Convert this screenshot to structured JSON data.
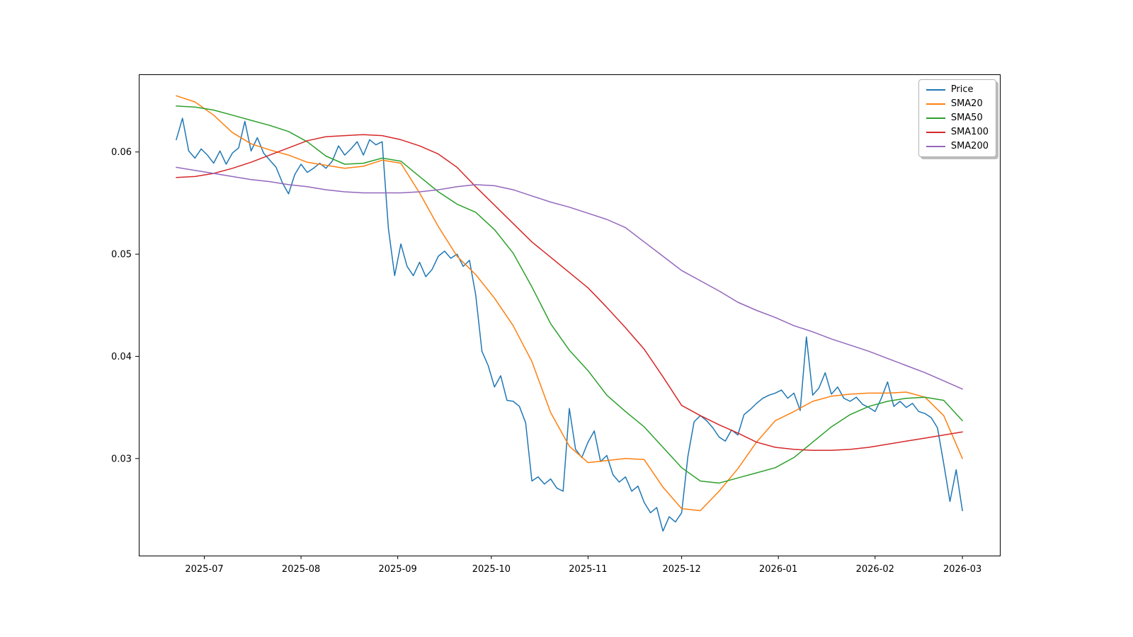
{
  "figure": {
    "background_color": "#ffffff",
    "axes_edge_color": "#000000",
    "tick_color": "#000000"
  },
  "legend": {
    "position": "upper right",
    "entries": [
      "Price",
      "SMA20",
      "SMA50",
      "SMA100",
      "SMA200"
    ]
  },
  "chart_data": {
    "type": "line",
    "title": "",
    "xlabel": "",
    "ylabel": "",
    "x_unit": "days since 2025-06-22",
    "xlim_days": [
      -12,
      264
    ],
    "ylim": [
      0.0205,
      0.0676
    ],
    "grid": false,
    "y_ticks": [
      0.03,
      0.04,
      0.05,
      0.06
    ],
    "x_ticks": [
      {
        "day": 9,
        "label": "2025-07"
      },
      {
        "day": 40,
        "label": "2025-08"
      },
      {
        "day": 71,
        "label": "2025-09"
      },
      {
        "day": 101,
        "label": "2025-10"
      },
      {
        "day": 132,
        "label": "2025-11"
      },
      {
        "day": 162,
        "label": "2025-12"
      },
      {
        "day": 193,
        "label": "2026-01"
      },
      {
        "day": 224,
        "label": "2026-02"
      },
      {
        "day": 252,
        "label": "2026-03"
      }
    ],
    "series": [
      {
        "name": "Price",
        "color": "#1f77b4",
        "x_start": 0,
        "x_step": 2,
        "values": [
          0.0612,
          0.0633,
          0.0601,
          0.0594,
          0.0603,
          0.0597,
          0.0589,
          0.0601,
          0.0588,
          0.0599,
          0.0604,
          0.063,
          0.0601,
          0.0614,
          0.0599,
          0.0592,
          0.0585,
          0.057,
          0.0559,
          0.0578,
          0.0588,
          0.058,
          0.0584,
          0.0589,
          0.0584,
          0.0591,
          0.0606,
          0.0597,
          0.0603,
          0.061,
          0.0597,
          0.0612,
          0.0607,
          0.061,
          0.0525,
          0.0479,
          0.051,
          0.0488,
          0.0479,
          0.0492,
          0.0478,
          0.0485,
          0.0498,
          0.0503,
          0.0496,
          0.05,
          0.0488,
          0.0494,
          0.046,
          0.0405,
          0.0391,
          0.037,
          0.0381,
          0.0357,
          0.0356,
          0.0351,
          0.0335,
          0.0278,
          0.0282,
          0.0275,
          0.028,
          0.0271,
          0.0268,
          0.0349,
          0.0309,
          0.0301,
          0.0316,
          0.0327,
          0.0297,
          0.0303,
          0.0284,
          0.0277,
          0.0282,
          0.0268,
          0.0273,
          0.0257,
          0.0247,
          0.0252,
          0.0229,
          0.0243,
          0.0238,
          0.0247,
          0.0302,
          0.0336,
          0.0342,
          0.0337,
          0.033,
          0.0321,
          0.0317,
          0.0328,
          0.0323,
          0.0343,
          0.0348,
          0.0354,
          0.0359,
          0.0362,
          0.0364,
          0.0367,
          0.0359,
          0.0364,
          0.0347,
          0.0419,
          0.0362,
          0.0369,
          0.0384,
          0.0363,
          0.037,
          0.0359,
          0.0356,
          0.036,
          0.0353,
          0.035,
          0.0346,
          0.0359,
          0.0375,
          0.0351,
          0.0356,
          0.035,
          0.0354,
          0.0346,
          0.0344,
          0.034,
          0.033,
          0.0295,
          0.0258,
          0.0289,
          0.0249
        ]
      },
      {
        "name": "SMA20",
        "color": "#ff7f0e",
        "x_start": 0,
        "x_step": 6,
        "values": [
          0.0655,
          0.0649,
          0.0636,
          0.0619,
          0.0608,
          0.0602,
          0.0597,
          0.059,
          0.0587,
          0.0584,
          0.0586,
          0.0592,
          0.0589,
          0.056,
          0.0527,
          0.0498,
          0.048,
          0.0457,
          0.043,
          0.0395,
          0.0345,
          0.0312,
          0.0296,
          0.0298,
          0.03,
          0.0299,
          0.0272,
          0.0251,
          0.0249,
          0.0268,
          0.029,
          0.0316,
          0.0337,
          0.0346,
          0.0356,
          0.0361,
          0.0363,
          0.0364,
          0.0364,
          0.0365,
          0.036,
          0.0342,
          0.03
        ]
      },
      {
        "name": "SMA50",
        "color": "#2ca02c",
        "x_start": 0,
        "x_step": 6,
        "values": [
          0.0645,
          0.0644,
          0.0641,
          0.0636,
          0.0631,
          0.0626,
          0.062,
          0.061,
          0.0596,
          0.0588,
          0.0589,
          0.0594,
          0.0591,
          0.0576,
          0.0561,
          0.0549,
          0.0541,
          0.0524,
          0.0501,
          0.0468,
          0.0432,
          0.0406,
          0.0386,
          0.0362,
          0.0346,
          0.0331,
          0.0311,
          0.0291,
          0.0278,
          0.0276,
          0.0281,
          0.0286,
          0.0291,
          0.0301,
          0.0316,
          0.0331,
          0.0343,
          0.0351,
          0.0356,
          0.0359,
          0.036,
          0.0357,
          0.0337
        ]
      },
      {
        "name": "SMA100",
        "color": "#d62728",
        "x_start": 0,
        "x_step": 6,
        "values": [
          0.0575,
          0.0576,
          0.0579,
          0.0584,
          0.059,
          0.0597,
          0.0604,
          0.0611,
          0.0615,
          0.0616,
          0.0617,
          0.0616,
          0.0612,
          0.0606,
          0.0598,
          0.0585,
          0.0566,
          0.0548,
          0.053,
          0.0512,
          0.0497,
          0.0482,
          0.0467,
          0.0448,
          0.0428,
          0.0407,
          0.038,
          0.0352,
          0.0342,
          0.0333,
          0.0325,
          0.0316,
          0.0311,
          0.0309,
          0.0308,
          0.0308,
          0.0309,
          0.0311,
          0.0314,
          0.0317,
          0.032,
          0.0323,
          0.0326
        ]
      },
      {
        "name": "SMA200",
        "color": "#9467bd",
        "x_start": 0,
        "x_step": 6,
        "values": [
          0.0585,
          0.0582,
          0.0579,
          0.0576,
          0.0573,
          0.0571,
          0.0568,
          0.0566,
          0.0563,
          0.0561,
          0.056,
          0.056,
          0.056,
          0.0561,
          0.0563,
          0.0566,
          0.0568,
          0.0567,
          0.0563,
          0.0557,
          0.0551,
          0.0546,
          0.054,
          0.0534,
          0.0526,
          0.0512,
          0.0498,
          0.0484,
          0.0474,
          0.0464,
          0.0453,
          0.0445,
          0.0438,
          0.043,
          0.0424,
          0.0417,
          0.0411,
          0.0405,
          0.0398,
          0.0391,
          0.0384,
          0.0376,
          0.0368
        ]
      }
    ]
  }
}
